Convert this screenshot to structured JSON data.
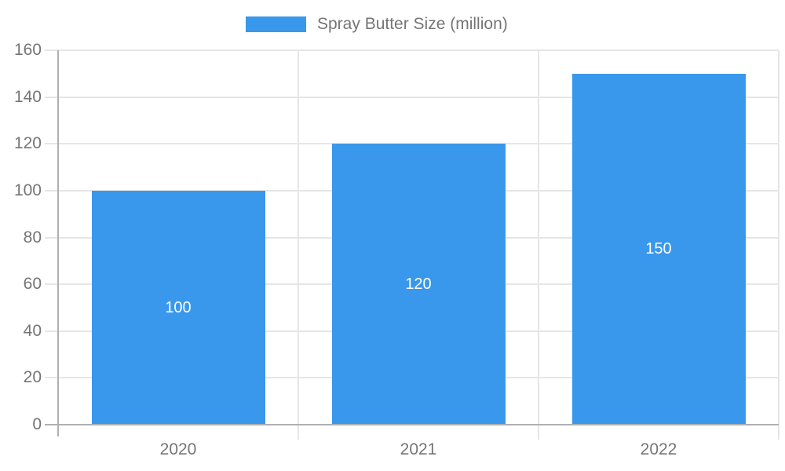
{
  "legend": {
    "label": "Spray Butter Size (million)"
  },
  "colors": {
    "bar": "#3998EB",
    "axis": "#b0b0b0",
    "grid": "#e6e6e6",
    "tick_text": "#757575",
    "bar_label_text": "#ffffff",
    "background": "#ffffff"
  },
  "chart_data": {
    "type": "bar",
    "title": "",
    "xlabel": "",
    "ylabel": "",
    "categories": [
      "2020",
      "2021",
      "2022"
    ],
    "series": [
      {
        "name": "Spray Butter Size (million)",
        "values": [
          100,
          120,
          150
        ]
      }
    ],
    "data_labels": [
      "100",
      "120",
      "150"
    ],
    "ylim": [
      0,
      160
    ],
    "yticks": [
      0,
      20,
      40,
      60,
      80,
      100,
      120,
      140,
      160
    ],
    "grid": true,
    "legend_position": "top-center"
  }
}
